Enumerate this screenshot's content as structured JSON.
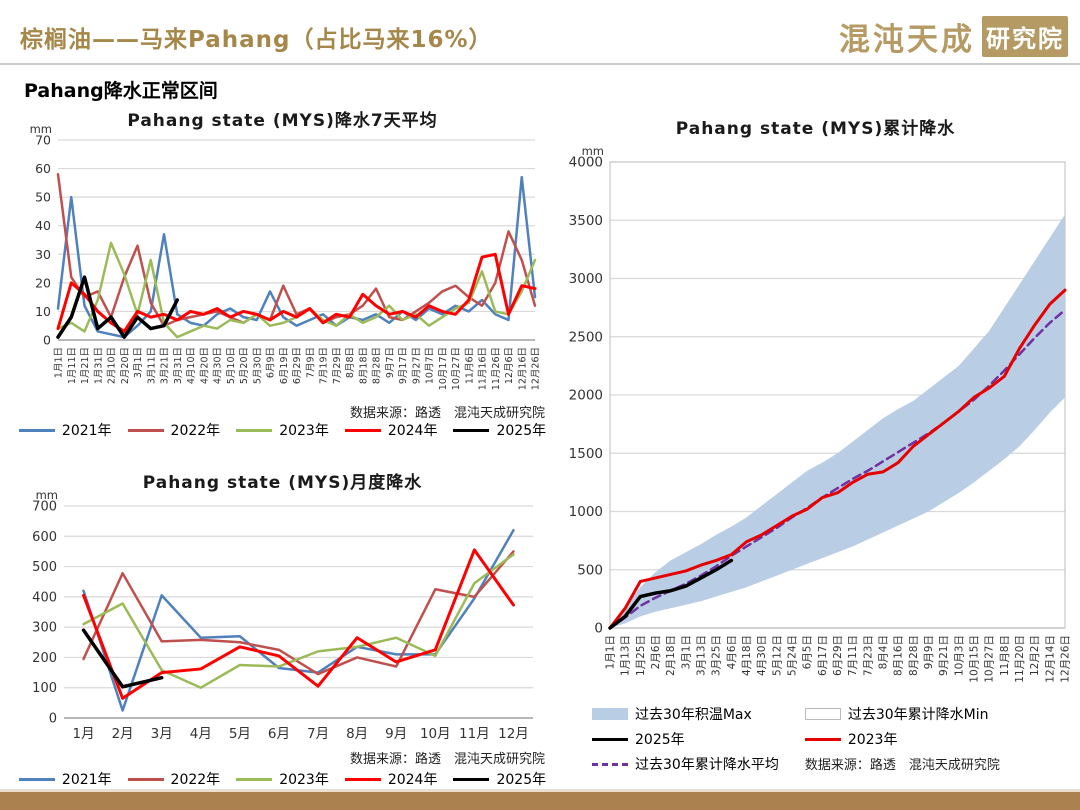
{
  "header": {
    "title": "棕榈油——马来Pahang（占比马来16%）",
    "logo_text": "混沌天成",
    "logo_badge": "研究院"
  },
  "subtitle": "Pahang降水正常区间",
  "colors": {
    "accent_gold": "#a6874a",
    "footer_bar": "#ab8150",
    "band_blue": "#b9cde5",
    "avg_purple": "#7030a0",
    "y2021": "#4f81bd",
    "y2022": "#c0504d",
    "y2023": "#9bbb59",
    "y2024": "#ff0000",
    "y2025": "#000000"
  },
  "chart_data": [
    {
      "type": "line",
      "title": "Pahang state (MYS)降水7天平均",
      "unit": "mm",
      "ylim": [
        0,
        70
      ],
      "ystep": 10,
      "grid": true,
      "rotate_labels": true,
      "x_between": false,
      "pad": [
        38,
        20,
        10,
        62
      ],
      "ytick_fs": 12.5,
      "xtick_fs": 9.5,
      "source": "数据来源：路透　混沌天成研究院",
      "categories": [
        "1月1日",
        "1月11日",
        "1月21日",
        "1月31日",
        "2月10日",
        "2月20日",
        "3月1日",
        "3月11日",
        "3月21日",
        "3月31日",
        "4月10日",
        "4月20日",
        "4月30日",
        "5月10日",
        "5月20日",
        "5月30日",
        "6月9日",
        "6月19日",
        "6月29日",
        "7月9日",
        "7月19日",
        "7月29日",
        "8月8日",
        "8月18日",
        "8月28日",
        "9月7日",
        "9月17日",
        "9月27日",
        "10月7日",
        "10月17日",
        "10月27日",
        "11月6日",
        "11月16日",
        "11月26日",
        "12月6日",
        "12月16日",
        "12月26日"
      ],
      "series": [
        {
          "name": "2021年",
          "color": "#4f81bd",
          "width": 2.5,
          "values": [
            11,
            50,
            12,
            3,
            2,
            1,
            5,
            10,
            37,
            9,
            6,
            5,
            9,
            11,
            8,
            7,
            17,
            8,
            5,
            7,
            9,
            5,
            8,
            7,
            9,
            6,
            10,
            7,
            11,
            9,
            12,
            10,
            14,
            9,
            7,
            57,
            15
          ]
        },
        {
          "name": "2022年",
          "color": "#c0504d",
          "width": 2.5,
          "values": [
            58,
            22,
            15,
            17,
            8,
            22,
            33,
            13,
            5,
            7,
            8,
            9,
            10,
            8,
            6,
            9,
            7,
            19,
            9,
            11,
            6,
            8,
            9,
            12,
            18,
            8,
            7,
            10,
            13,
            17,
            19,
            15,
            12,
            20,
            38,
            28,
            12
          ]
        },
        {
          "name": "2023年",
          "color": "#9bbb59",
          "width": 2.5,
          "values": [
            4,
            6,
            3,
            14,
            34,
            23,
            9,
            28,
            6,
            1,
            3,
            5,
            4,
            7,
            6,
            9,
            5,
            6,
            8,
            11,
            7,
            5,
            9,
            6,
            8,
            12,
            7,
            9,
            5,
            8,
            11,
            13,
            24,
            10,
            9,
            17,
            28
          ]
        },
        {
          "name": "2024年",
          "color": "#ff0000",
          "width": 3,
          "values": [
            4,
            20,
            16,
            10,
            6,
            3,
            10,
            8,
            9,
            7,
            10,
            9,
            11,
            8,
            10,
            9,
            7,
            10,
            8,
            11,
            6,
            9,
            8,
            16,
            12,
            9,
            10,
            8,
            12,
            10,
            9,
            14,
            29,
            30,
            9,
            19,
            18
          ]
        },
        {
          "name": "2025年",
          "color": "#000000",
          "width": 3.5,
          "values": [
            1,
            8,
            22,
            4,
            8,
            1,
            8,
            4,
            5,
            14,
            null,
            null,
            null,
            null,
            null,
            null,
            null,
            null,
            null,
            null,
            null,
            null,
            null,
            null,
            null,
            null,
            null,
            null,
            null,
            null,
            null,
            null,
            null,
            null,
            null,
            null,
            null
          ]
        }
      ],
      "legend": [
        {
          "label": "2021年",
          "color": "#4f81bd",
          "swatch": "line"
        },
        {
          "label": "2022年",
          "color": "#c0504d",
          "swatch": "line"
        },
        {
          "label": "2023年",
          "color": "#9bbb59",
          "swatch": "line"
        },
        {
          "label": "2024年",
          "color": "#ff0000",
          "swatch": "line"
        },
        {
          "label": "2025年",
          "color": "#000000",
          "swatch": "line"
        }
      ]
    },
    {
      "type": "line",
      "title": "Pahang state (MYS)月度降水",
      "unit": "mm",
      "ylim": [
        0,
        700
      ],
      "ystep": 100,
      "grid": true,
      "rotate_labels": false,
      "x_between": true,
      "pad": [
        44,
        14,
        12,
        30
      ],
      "ytick_fs": 13,
      "xtick_fs": 13.5,
      "source": "数据来源：路透　混沌天成研究院",
      "categories": [
        "1月",
        "2月",
        "3月",
        "4月",
        "5月",
        "6月",
        "7月",
        "8月",
        "9月",
        "10月",
        "11月",
        "12月"
      ],
      "series": [
        {
          "name": "2021年",
          "color": "#4f81bd",
          "width": 2.5,
          "values": [
            420,
            25,
            405,
            265,
            270,
            165,
            150,
            235,
            210,
            210,
            395,
            620
          ]
        },
        {
          "name": "2022年",
          "color": "#c0504d",
          "width": 2.5,
          "values": [
            195,
            478,
            253,
            258,
            250,
            225,
            145,
            200,
            170,
            425,
            400,
            550
          ]
        },
        {
          "name": "2023年",
          "color": "#9bbb59",
          "width": 2.5,
          "values": [
            310,
            378,
            158,
            100,
            175,
            170,
            220,
            235,
            265,
            205,
            445,
            540
          ]
        },
        {
          "name": "2024年",
          "color": "#ff0000",
          "width": 3,
          "values": [
            405,
            65,
            150,
            162,
            235,
            205,
            105,
            265,
            185,
            225,
            555,
            373
          ]
        },
        {
          "name": "2025年",
          "color": "#000000",
          "width": 3.5,
          "values": [
            290,
            103,
            133,
            null,
            null,
            null,
            null,
            null,
            null,
            null,
            null,
            null
          ]
        }
      ],
      "legend": [
        {
          "label": "2021年",
          "color": "#4f81bd",
          "swatch": "line"
        },
        {
          "label": "2022年",
          "color": "#c0504d",
          "swatch": "line"
        },
        {
          "label": "2023年",
          "color": "#9bbb59",
          "swatch": "line"
        },
        {
          "label": "2024年",
          "color": "#ff0000",
          "swatch": "line"
        },
        {
          "label": "2025年",
          "color": "#000000",
          "swatch": "line"
        }
      ]
    },
    {
      "type": "area-line",
      "title": "Pahang state (MYS)累计降水",
      "unit": "mm",
      "ylim": [
        0,
        4000
      ],
      "ystep": 500,
      "grid": true,
      "frame": true,
      "rotate_labels": true,
      "x_between": false,
      "pad": [
        52,
        24,
        8,
        70
      ],
      "ytick_fs": 13.5,
      "xtick_fs": 10.5,
      "source": "数据来源：路透　混沌天成研究院",
      "categories": [
        "1月1日",
        "1月13日",
        "1月25日",
        "2月6日",
        "2月18日",
        "3月1日",
        "3月13日",
        "3月25日",
        "4月6日",
        "4月18日",
        "4月30日",
        "5月12日",
        "5月24日",
        "6月5日",
        "6月17日",
        "6月29日",
        "7月11日",
        "7月23日",
        "8月4日",
        "8月16日",
        "8月28日",
        "9月9日",
        "9月21日",
        "10月3日",
        "10月15日",
        "10月27日",
        "11月8日",
        "11月20日",
        "12月2日",
        "12月14日",
        "12月26日"
      ],
      "band": {
        "name_max": "过去30年积温Max",
        "name_min": "过去30年累计降水Min",
        "color": "#b9cde5",
        "max": [
          0,
          180,
          350,
          480,
          580,
          650,
          720,
          800,
          870,
          950,
          1050,
          1150,
          1250,
          1350,
          1420,
          1500,
          1600,
          1700,
          1800,
          1880,
          1950,
          2050,
          2150,
          2250,
          2400,
          2550,
          2750,
          2950,
          3150,
          3350,
          3550
        ],
        "min": [
          0,
          40,
          100,
          140,
          170,
          200,
          230,
          270,
          310,
          350,
          400,
          450,
          500,
          550,
          600,
          650,
          700,
          760,
          820,
          880,
          940,
          1000,
          1080,
          1160,
          1250,
          1350,
          1450,
          1560,
          1700,
          1850,
          1980
        ]
      },
      "series": [
        {
          "name": "过去30年累计降水平均",
          "color": "#7030a0",
          "width": 2.5,
          "dash": "8 5",
          "values": [
            0,
            90,
            190,
            260,
            320,
            380,
            450,
            530,
            620,
            700,
            780,
            860,
            950,
            1030,
            1120,
            1200,
            1280,
            1350,
            1430,
            1510,
            1590,
            1670,
            1760,
            1860,
            1960,
            2080,
            2210,
            2350,
            2490,
            2620,
            2730
          ]
        },
        {
          "name": "2023年",
          "color": "#e60000",
          "width": 3,
          "values": [
            0,
            170,
            400,
            430,
            460,
            490,
            540,
            580,
            630,
            740,
            800,
            880,
            960,
            1020,
            1120,
            1160,
            1250,
            1320,
            1340,
            1420,
            1560,
            1660,
            1760,
            1860,
            1980,
            2060,
            2160,
            2400,
            2600,
            2780,
            2900
          ]
        },
        {
          "name": "2025年",
          "color": "#000000",
          "width": 3.5,
          "values": [
            0,
            100,
            270,
            300,
            320,
            360,
            430,
            500,
            580,
            null,
            null,
            null,
            null,
            null,
            null,
            null,
            null,
            null,
            null,
            null,
            null,
            null,
            null,
            null,
            null,
            null,
            null,
            null,
            null,
            null,
            null
          ]
        }
      ],
      "legend_left": [
        {
          "label": "过去30年积温Max",
          "color": "#b9cde5",
          "swatch": "area"
        },
        {
          "label": "2025年",
          "color": "#000000",
          "swatch": "line"
        },
        {
          "label": "过去30年累计降水平均",
          "color": "#7030a0",
          "swatch": "line",
          "dash": true
        }
      ],
      "legend_right": [
        {
          "label": "过去30年累计降水Min",
          "color": "#ffffff",
          "border": "#bbbbbb",
          "swatch": "area"
        },
        {
          "label": "2023年",
          "color": "#e60000",
          "swatch": "line"
        }
      ]
    }
  ]
}
